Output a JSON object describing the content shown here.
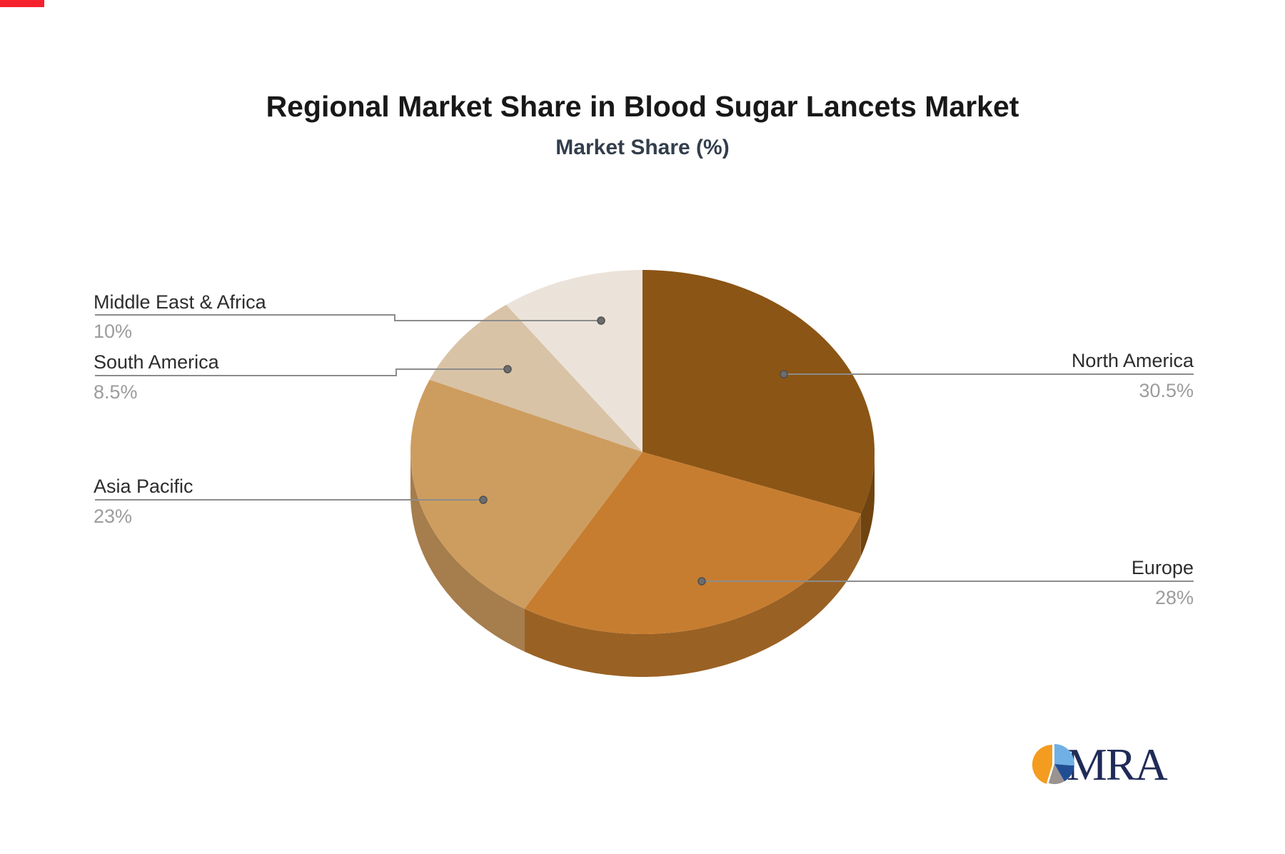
{
  "header": {
    "title": "Regional Market Share in Blood Sugar Lancets Market",
    "subtitle": "Market Share (%)"
  },
  "chart_data": {
    "type": "pie",
    "title": "Regional Market Share in Blood Sugar Lancets Market",
    "subtitle": "Market Share (%)",
    "unit": "%",
    "style": "3d-pie",
    "start_angle": "12-o-clock",
    "direction": "clockwise",
    "legend": "none",
    "categories": [
      "North America",
      "Europe",
      "Asia Pacific",
      "South America",
      "Middle East & Africa"
    ],
    "values": [
      30.5,
      28,
      23,
      8.5,
      10
    ],
    "value_labels": [
      "30.5%",
      "28%",
      "23%",
      "8.5%",
      "10%"
    ],
    "colors": [
      "#8B5515",
      "#C77D30",
      "#CD9D5F",
      "#D9C3A6",
      "#EBE3DA"
    ],
    "side_colors": [
      "#6F4410",
      "#9A6124",
      "#A67D4C",
      "#B29C82",
      "#C4BBAE"
    ],
    "label_color": "#2d2d2d",
    "value_color": "#9c9c9c",
    "connector_color": "#8c8c8c"
  },
  "logo": {
    "text": "MRA",
    "text_color": "#1F2B57",
    "pie_colors": {
      "orange": "#F49C1F",
      "light_blue": "#71B0E5",
      "navy": "#204E94",
      "gray": "#9A9390"
    }
  }
}
